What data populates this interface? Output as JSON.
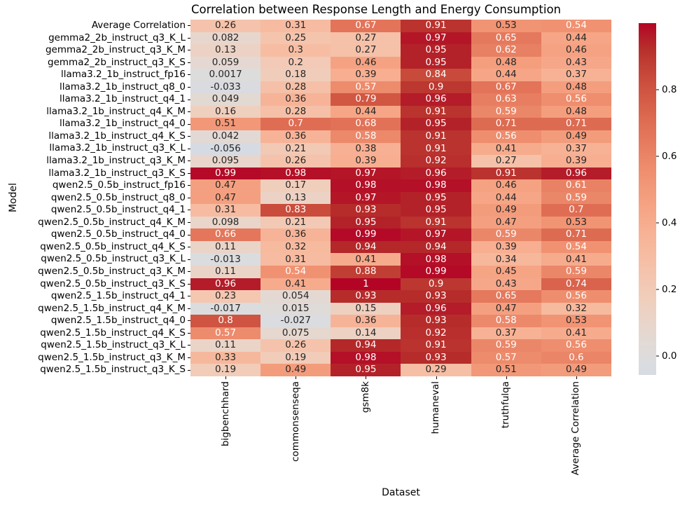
{
  "chart_data": {
    "type": "heatmap",
    "title": "Correlation between Response Length and Energy Consumption",
    "xlabel": "Dataset",
    "ylabel": "Model",
    "columns": [
      "bigbenchhard",
      "commonsenseqa",
      "gsm8k",
      "humaneval",
      "truthfulqa",
      "Average Correlation"
    ],
    "rows": [
      "Average Correlation",
      "gemma2_2b_instruct_q3_K_L",
      "gemma2_2b_instruct_q3_K_M",
      "gemma2_2b_instruct_q3_K_S",
      "llama3.2_1b_instruct_fp16",
      "llama3.2_1b_instruct_q8_0",
      "llama3.2_1b_instruct_q4_1",
      "llama3.2_1b_instruct_q4_K_M",
      "llama3.2_1b_instruct_q4_0",
      "llama3.2_1b_instruct_q4_K_S",
      "llama3.2_1b_instruct_q3_K_L",
      "llama3.2_1b_instruct_q3_K_M",
      "llama3.2_1b_instruct_q3_K_S",
      "qwen2.5_0.5b_instruct_fp16",
      "qwen2.5_0.5b_instruct_q8_0",
      "qwen2.5_0.5b_instruct_q4_1",
      "qwen2.5_0.5b_instruct_q4_K_M",
      "qwen2.5_0.5b_instruct_q4_0",
      "qwen2.5_0.5b_instruct_q4_K_S",
      "qwen2.5_0.5b_instruct_q3_K_L",
      "qwen2.5_0.5b_instruct_q3_K_M",
      "qwen2.5_0.5b_instruct_q3_K_S",
      "qwen2.5_1.5b_instruct_q4_1",
      "qwen2.5_1.5b_instruct_q4_K_M",
      "qwen2.5_1.5b_instruct_q4_0",
      "qwen2.5_1.5b_instruct_q4_K_S",
      "qwen2.5_1.5b_instruct_q3_K_L",
      "qwen2.5_1.5b_instruct_q3_K_M",
      "qwen2.5_1.5b_instruct_q3_K_S"
    ],
    "values": [
      [
        "0.26",
        "0.31",
        "0.67",
        "0.91",
        "0.53",
        "0.54"
      ],
      [
        "0.082",
        "0.25",
        "0.27",
        "0.97",
        "0.65",
        "0.44"
      ],
      [
        "0.13",
        "0.3",
        "0.27",
        "0.95",
        "0.62",
        "0.46"
      ],
      [
        "0.059",
        "0.2",
        "0.46",
        "0.95",
        "0.48",
        "0.43"
      ],
      [
        "0.0017",
        "0.18",
        "0.39",
        "0.84",
        "0.44",
        "0.37"
      ],
      [
        "-0.033",
        "0.28",
        "0.57",
        "0.9",
        "0.67",
        "0.48"
      ],
      [
        "0.049",
        "0.36",
        "0.79",
        "0.96",
        "0.63",
        "0.56"
      ],
      [
        "0.16",
        "0.28",
        "0.44",
        "0.91",
        "0.59",
        "0.48"
      ],
      [
        "0.51",
        "0.7",
        "0.68",
        "0.95",
        "0.71",
        "0.71"
      ],
      [
        "0.042",
        "0.36",
        "0.58",
        "0.91",
        "0.56",
        "0.49"
      ],
      [
        "-0.056",
        "0.21",
        "0.38",
        "0.91",
        "0.41",
        "0.37"
      ],
      [
        "0.095",
        "0.26",
        "0.39",
        "0.92",
        "0.27",
        "0.39"
      ],
      [
        "0.99",
        "0.98",
        "0.97",
        "0.96",
        "0.91",
        "0.96"
      ],
      [
        "0.47",
        "0.17",
        "0.98",
        "0.98",
        "0.46",
        "0.61"
      ],
      [
        "0.47",
        "0.13",
        "0.97",
        "0.95",
        "0.44",
        "0.59"
      ],
      [
        "0.31",
        "0.83",
        "0.93",
        "0.95",
        "0.49",
        "0.7"
      ],
      [
        "0.098",
        "0.21",
        "0.95",
        "0.91",
        "0.47",
        "0.53"
      ],
      [
        "0.66",
        "0.36",
        "0.99",
        "0.97",
        "0.59",
        "0.71"
      ],
      [
        "0.11",
        "0.32",
        "0.94",
        "0.94",
        "0.39",
        "0.54"
      ],
      [
        "-0.013",
        "0.31",
        "0.41",
        "0.98",
        "0.34",
        "0.41"
      ],
      [
        "0.11",
        "0.54",
        "0.88",
        "0.99",
        "0.45",
        "0.59"
      ],
      [
        "0.96",
        "0.41",
        "1",
        "0.9",
        "0.43",
        "0.74"
      ],
      [
        "0.23",
        "0.054",
        "0.93",
        "0.93",
        "0.65",
        "0.56"
      ],
      [
        "-0.017",
        "0.015",
        "0.15",
        "0.96",
        "0.47",
        "0.32"
      ],
      [
        "0.8",
        "-0.027",
        "0.36",
        "0.93",
        "0.58",
        "0.53"
      ],
      [
        "0.57",
        "0.075",
        "0.14",
        "0.92",
        "0.37",
        "0.41"
      ],
      [
        "0.11",
        "0.26",
        "0.94",
        "0.91",
        "0.59",
        "0.56"
      ],
      [
        "0.33",
        "0.19",
        "0.98",
        "0.93",
        "0.57",
        "0.6"
      ],
      [
        "0.19",
        "0.49",
        "0.95",
        "0.29",
        "0.51",
        "0.49"
      ]
    ],
    "vmin": -0.056,
    "vmax": 1.0,
    "center": 0,
    "colorbar_ticks": [
      "0.0",
      "0.2",
      "0.4",
      "0.6",
      "0.8"
    ],
    "colormap": {
      "name": "coolwarm",
      "stops": [
        [
          0.4375,
          "#cdd9ec"
        ],
        [
          0.46875,
          "#d5dbe4"
        ],
        [
          0.5,
          "#dddcdc"
        ],
        [
          0.53125,
          "#e5d8d1"
        ],
        [
          0.5625,
          "#ecd3c5"
        ],
        [
          0.59375,
          "#f1ccb9"
        ],
        [
          0.625,
          "#f5c4ad"
        ],
        [
          0.65625,
          "#f6bba0"
        ],
        [
          0.6875,
          "#f7b194"
        ],
        [
          0.71875,
          "#f6a687"
        ],
        [
          0.75,
          "#f39a7a"
        ],
        [
          0.78125,
          "#ee8d6e"
        ],
        [
          0.8125,
          "#e87f62"
        ],
        [
          0.84375,
          "#e17056"
        ],
        [
          0.875,
          "#d7614a"
        ],
        [
          0.90625,
          "#cd513f"
        ],
        [
          0.9375,
          "#c14034"
        ],
        [
          0.96875,
          "#b4292a"
        ],
        [
          1.0,
          "#b40426"
        ]
      ]
    },
    "annot_dark_text": "#262626",
    "annot_light_text": "#ffffff",
    "axis_text_color": "#000000"
  }
}
